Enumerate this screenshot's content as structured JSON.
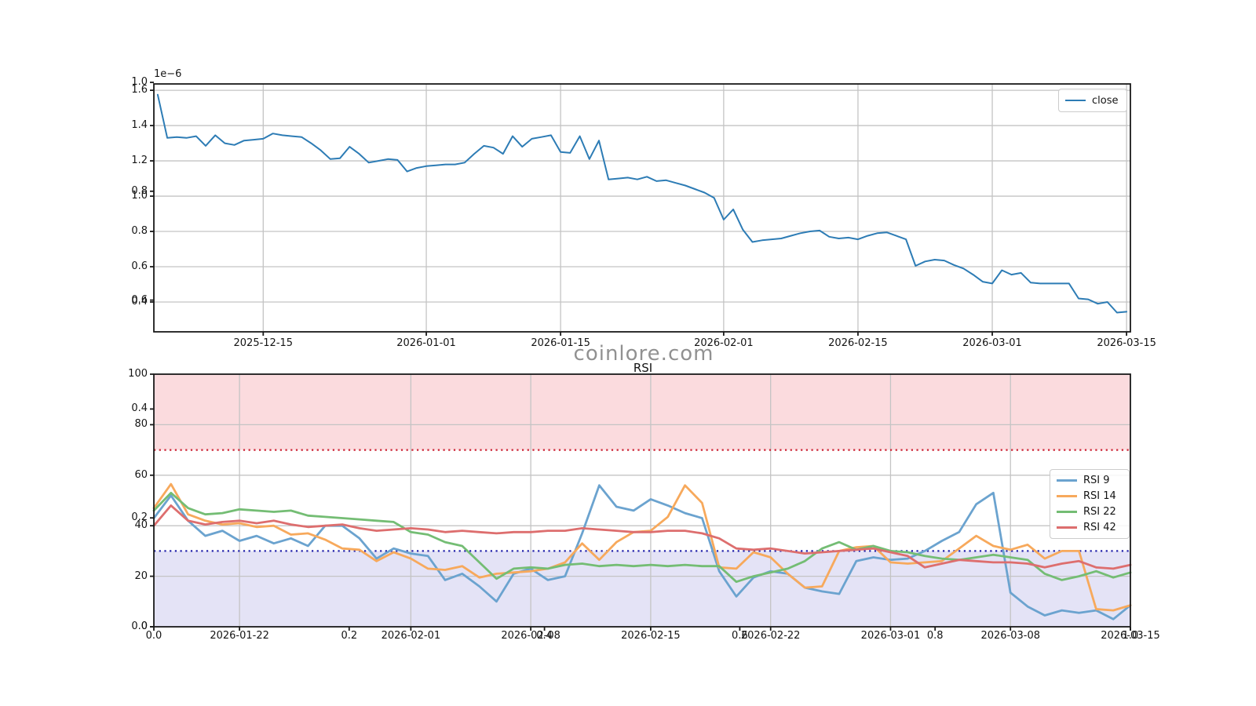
{
  "watermark": "coinlore.com",
  "price_chart": {
    "offset_label": "1e−6",
    "legend": [
      {
        "label": "close"
      }
    ],
    "y_tick_labels": [
      "0.4",
      "0.6",
      "0.8",
      "1.0",
      "1.2",
      "1.4",
      "1.6"
    ],
    "y_tick_values": [
      0.4,
      0.6,
      0.8,
      1.0,
      1.2,
      1.4,
      1.6
    ],
    "x_tick_labels": [
      "2025-12-15",
      "2026-01-01",
      "2026-01-15",
      "2026-02-01",
      "2026-02-15",
      "2026-03-01",
      "2026-03-15"
    ],
    "x_tick_indices": [
      11,
      28,
      42,
      59,
      73,
      87,
      101
    ]
  },
  "rsi_chart": {
    "title": "RSI",
    "legend": [
      {
        "label": "RSI 9"
      },
      {
        "label": "RSI 14"
      },
      {
        "label": "RSI 22"
      },
      {
        "label": "RSI 42"
      }
    ],
    "y_tick_labels": [
      "0",
      "20",
      "40",
      "60",
      "80",
      "100"
    ],
    "y_tick_values": [
      0,
      20,
      40,
      60,
      80,
      100
    ],
    "x_tick_labels": [
      "2026-01-22",
      "2026-02-01",
      "2026-02-08",
      "2026-02-15",
      "2026-02-22",
      "2026-03-01",
      "2026-03-08",
      "2026-03-15"
    ],
    "x_tick_indices": [
      5,
      15,
      22,
      29,
      36,
      43,
      50,
      57
    ],
    "overbought_level": 70,
    "oversold_level": 30,
    "overbought_line_color": "#cc2233",
    "oversold_line_color": "#2222aa",
    "overbought_band_color": "#fbdbde",
    "oversold_band_color": "#e4e3f6"
  },
  "overlay_axis": {
    "y_labels": [
      "1.0",
      "0.8",
      "0.6",
      "0.4",
      "0.2",
      "0.0"
    ],
    "x_labels": [
      "0.0",
      "0.2",
      "0.4",
      "0.6",
      "0.8",
      "1.0"
    ]
  },
  "chart_data": [
    {
      "type": "line",
      "name": "price",
      "title": "",
      "xlabel": "",
      "ylabel": "",
      "y_scale": "1e-6",
      "ylim": [
        0.231,
        1.636
      ],
      "x_start": "2025-12-04",
      "x_interval": "1 day",
      "grid": true,
      "legend_position": "upper right",
      "series": [
        {
          "name": "close",
          "color": "#2d7cb5",
          "values": [
            1.575,
            1.33,
            1.335,
            1.33,
            1.34,
            1.285,
            1.345,
            1.3,
            1.29,
            1.315,
            1.32,
            1.325,
            1.355,
            1.345,
            1.34,
            1.335,
            1.3,
            1.26,
            1.21,
            1.215,
            1.28,
            1.24,
            1.19,
            1.2,
            1.21,
            1.205,
            1.14,
            1.16,
            1.17,
            1.175,
            1.18,
            1.18,
            1.19,
            1.24,
            1.285,
            1.275,
            1.24,
            1.34,
            1.28,
            1.325,
            1.335,
            1.345,
            1.25,
            1.245,
            1.34,
            1.21,
            1.315,
            1.095,
            1.1,
            1.105,
            1.095,
            1.11,
            1.085,
            1.09,
            1.075,
            1.06,
            1.04,
            1.02,
            0.99,
            0.867,
            0.925,
            0.81,
            0.74,
            0.75,
            0.755,
            0.76,
            0.775,
            0.79,
            0.8,
            0.805,
            0.77,
            0.76,
            0.765,
            0.755,
            0.775,
            0.79,
            0.795,
            0.775,
            0.755,
            0.605,
            0.63,
            0.64,
            0.635,
            0.61,
            0.59,
            0.555,
            0.515,
            0.505,
            0.58,
            0.555,
            0.565,
            0.51,
            0.505,
            0.505,
            0.505,
            0.505,
            0.42,
            0.415,
            0.39,
            0.4,
            0.34,
            0.345
          ]
        }
      ]
    },
    {
      "type": "line",
      "name": "rsi",
      "title": "RSI",
      "xlabel": "",
      "ylabel": "",
      "ylim": [
        0,
        100
      ],
      "x_start": "2026-01-17",
      "x_interval": "1 day",
      "grid": true,
      "legend_position": "right",
      "hlines": [
        70,
        30
      ],
      "bands": [
        [
          70,
          100
        ],
        [
          0,
          30
        ]
      ],
      "series": [
        {
          "name": "RSI 9",
          "color": "#6ba3cf",
          "values": [
            43,
            52,
            42,
            36,
            38,
            34,
            36,
            33,
            35,
            32,
            40,
            40,
            35,
            27,
            31,
            29,
            28,
            18.5,
            21,
            16,
            10,
            21,
            23,
            18.5,
            20,
            37,
            56,
            47.5,
            46,
            50.5,
            48,
            45,
            43,
            22,
            12,
            19.5,
            22,
            21,
            15.5,
            14,
            13,
            26,
            27.5,
            26.5,
            27,
            30,
            34,
            37.5,
            48.5,
            53,
            13.5,
            8,
            4.5,
            6.5,
            5.5,
            6.5,
            3,
            8.5
          ]
        },
        {
          "name": "RSI 14",
          "color": "#f7a95c",
          "values": [
            47,
            56.5,
            44.5,
            42,
            40.5,
            41,
            39.5,
            40,
            36.5,
            37,
            34.5,
            31,
            30.5,
            26,
            29.5,
            27,
            23,
            22.5,
            24,
            19.5,
            21,
            21.5,
            22,
            23,
            25.5,
            33,
            26.5,
            33.5,
            37.5,
            38,
            43.5,
            56,
            49,
            23.5,
            23,
            29.5,
            27.5,
            21,
            15.5,
            16,
            30,
            31.5,
            32,
            25.5,
            25,
            25.5,
            26,
            31,
            36,
            32,
            30.5,
            32.5,
            27,
            30,
            30,
            7,
            6.5,
            8.5
          ]
        },
        {
          "name": "RSI 22",
          "color": "#74bd74",
          "values": [
            46,
            53,
            47,
            44.5,
            45,
            46.5,
            46,
            45.5,
            46,
            44,
            43.5,
            43,
            42.5,
            42,
            41.5,
            37.5,
            36.5,
            33.5,
            32,
            25.5,
            19,
            23,
            23.5,
            23,
            24.5,
            25,
            24,
            24.5,
            24,
            24.5,
            24,
            24.5,
            24,
            24,
            17.8,
            20,
            21.5,
            23,
            26,
            31,
            33.5,
            30.5,
            32,
            30,
            29.5,
            28,
            27,
            26.5,
            27.5,
            28.5,
            27.5,
            26.5,
            21,
            18.5,
            20,
            22,
            19.5,
            21.5
          ]
        },
        {
          "name": "RSI 42",
          "color": "#dd6e6e",
          "values": [
            40,
            48,
            42,
            40.5,
            41.5,
            42,
            41,
            42,
            40.5,
            39.5,
            40,
            40.5,
            39,
            38,
            38.5,
            39,
            38.5,
            37.5,
            38,
            37.5,
            37,
            37.5,
            37.5,
            38,
            38,
            39,
            38.5,
            38,
            37.5,
            37.5,
            38,
            38,
            37,
            35,
            31,
            30.5,
            31,
            30,
            29,
            29.5,
            30,
            30.5,
            31,
            29.5,
            28,
            23.5,
            25,
            26.5,
            26,
            25.5,
            25.5,
            25,
            23.5,
            25,
            26,
            23.5,
            23,
            24.5
          ]
        }
      ]
    }
  ]
}
